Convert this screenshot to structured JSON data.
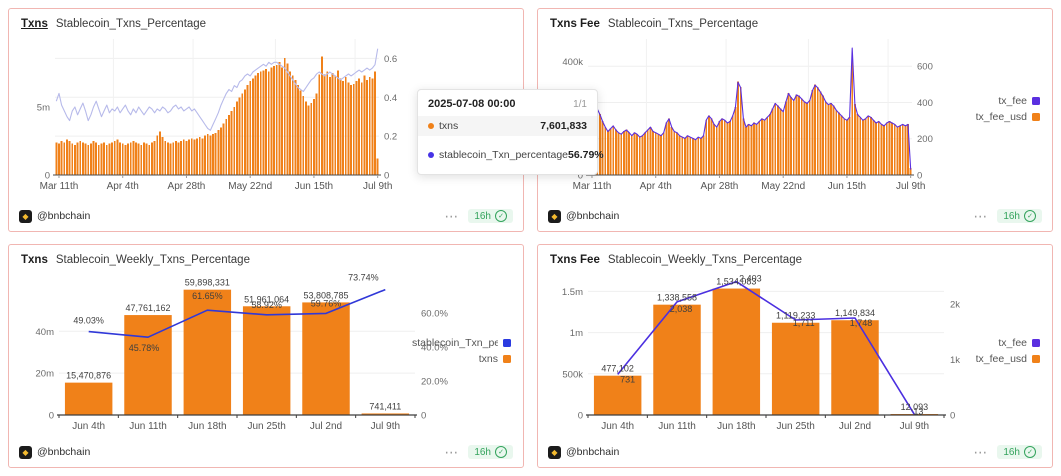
{
  "colors": {
    "bar_orange": "#f08119",
    "line_light_periwinkle": "#b7baea",
    "line_blue": "#3038d8",
    "line_purple": "#5a2fe0",
    "panel_border": "#f1b6b2",
    "badge_green": "#33a35c",
    "badge_bg": "#e9f7ee",
    "bnb_gold": "#f3ba2f"
  },
  "footer": {
    "logo": "bnb-diamond-icon",
    "logo_glyph": "◆",
    "handle": "@bnbchain",
    "more": "⋯",
    "badge_text": "16h",
    "badge_check": "✓"
  },
  "panels": [
    {
      "id": "txns-daily",
      "title_bold": "Txns",
      "title_rest": "Stablecoin_Txns_Percentage",
      "legend": []
    },
    {
      "id": "txns-fee-daily",
      "title_bold": "Txns Fee",
      "title_rest": "Stablecoin_Txns_Percentage",
      "legend": [
        {
          "label": "tx_fee",
          "color": "#5a2fe0"
        },
        {
          "label": "tx_fee_usd",
          "color": "#f08119"
        }
      ]
    },
    {
      "id": "txns-weekly",
      "title_bold": "Txns",
      "title_rest": "Stablecoin_Weekly_Txns_Percentage",
      "legend": [
        {
          "label": "stablecoin_Txn_pe",
          "color": "#2b3be0"
        },
        {
          "label": "txns",
          "color": "#f08119"
        }
      ]
    },
    {
      "id": "txns-fee-weekly",
      "title_bold": "Txns Fee",
      "title_rest": "Stablecoin_Weekly_Txns_Percentage",
      "legend": [
        {
          "label": "tx_fee",
          "color": "#5a2fe0"
        },
        {
          "label": "tx_fee_usd",
          "color": "#f08119"
        }
      ]
    }
  ],
  "tooltip": {
    "date": "2025-07-08 00:00",
    "page": "1/1",
    "rows": [
      {
        "dot_color": "#f08119",
        "name": "txns",
        "value": "7,601,833",
        "highlighted": true
      },
      {
        "dot_color": "#4733e6",
        "name": "stablecoin_Txn_percentage",
        "value": "56.79%",
        "highlighted": false
      }
    ]
  },
  "chart_data": [
    {
      "id": "txns-daily",
      "type": "bar",
      "title": "Txns Stablecoin_Txns_Percentage",
      "x_range": [
        "Mar 10th 2025",
        "Jul 9th 2025"
      ],
      "xticks": [
        {
          "index": 1,
          "label": "Mar 11th"
        },
        {
          "index": 25,
          "label": "Apr 4th"
        },
        {
          "index": 49,
          "label": "Apr 28th"
        },
        {
          "index": 73,
          "label": "May 22nd"
        },
        {
          "index": 97,
          "label": "Jun 15th"
        },
        {
          "index": 121,
          "label": "Jul 9th"
        }
      ],
      "left_axis": {
        "unit": "txns (millions)",
        "max": 10,
        "ticks": [
          {
            "value": 0,
            "label": "0"
          },
          {
            "value": 5,
            "label": "5m"
          }
        ]
      },
      "right_axis": {
        "unit": "ratio",
        "max": 0.7,
        "ticks": [
          {
            "value": 0,
            "label": "0"
          },
          {
            "value": 0.2,
            "label": "0.2"
          },
          {
            "value": 0.4,
            "label": "0.4"
          },
          {
            "value": 0.6,
            "label": "0.6"
          }
        ]
      },
      "series": [
        {
          "name": "txns",
          "type": "bar",
          "axis": "left",
          "color": "#f08119",
          "values": [
            2.4,
            2.3,
            2.5,
            2.4,
            2.6,
            2.5,
            2.3,
            2.2,
            2.4,
            2.5,
            2.4,
            2.3,
            2.2,
            2.3,
            2.5,
            2.4,
            2.2,
            2.3,
            2.4,
            2.2,
            2.3,
            2.4,
            2.5,
            2.6,
            2.4,
            2.3,
            2.2,
            2.3,
            2.4,
            2.5,
            2.4,
            2.3,
            2.2,
            2.4,
            2.3,
            2.2,
            2.4,
            2.5,
            2.9,
            3.2,
            2.8,
            2.5,
            2.4,
            2.3,
            2.4,
            2.5,
            2.4,
            2.5,
            2.6,
            2.5,
            2.6,
            2.7,
            2.6,
            2.7,
            2.8,
            2.7,
            2.9,
            3.0,
            2.9,
            3.0,
            3.1,
            3.3,
            3.5,
            3.8,
            4.1,
            4.4,
            4.7,
            5.0,
            5.4,
            5.7,
            6.0,
            6.3,
            6.6,
            6.9,
            7.1,
            7.3,
            7.5,
            7.6,
            7.7,
            7.8,
            7.6,
            7.9,
            8.0,
            8.1,
            8.3,
            7.9,
            8.6,
            8.2,
            7.6,
            7.3,
            7.0,
            6.6,
            6.2,
            5.8,
            5.4,
            5.1,
            5.3,
            5.6,
            6.0,
            7.4,
            8.7,
            7.4,
            7.6,
            7.2,
            7.5,
            7.3,
            7.7,
            7.1,
            6.9,
            7.2,
            6.8,
            6.6,
            6.7,
            6.9,
            7.1,
            6.8,
            7.3,
            7.0,
            7.2,
            7.1,
            7.6,
            1.2
          ]
        },
        {
          "name": "stablecoin_Txn_percentage",
          "type": "line",
          "axis": "right",
          "color": "#b7baea",
          "values": [
            0.38,
            0.42,
            0.36,
            0.33,
            0.3,
            0.28,
            0.33,
            0.35,
            0.31,
            0.34,
            0.37,
            0.33,
            0.28,
            0.31,
            0.35,
            0.38,
            0.34,
            0.3,
            0.33,
            0.36,
            0.32,
            0.34,
            0.33,
            0.35,
            0.32,
            0.34,
            0.36,
            0.33,
            0.31,
            0.34,
            0.32,
            0.35,
            0.33,
            0.31,
            0.33,
            0.35,
            0.34,
            0.32,
            0.34,
            0.33,
            0.35,
            0.34,
            0.32,
            0.33,
            0.35,
            0.36,
            0.34,
            0.35,
            0.33,
            0.34,
            0.35,
            0.33,
            0.34,
            0.32,
            0.3,
            0.28,
            0.26,
            0.24,
            0.23,
            0.26,
            0.29,
            0.32,
            0.36,
            0.39,
            0.42,
            0.44,
            0.43,
            0.46,
            0.45,
            0.48,
            0.49,
            0.51,
            0.52,
            0.51,
            0.53,
            0.54,
            0.55,
            0.56,
            0.57,
            0.56,
            0.58,
            0.57,
            0.58,
            0.58,
            0.57,
            0.56,
            0.55,
            0.53,
            0.51,
            0.49,
            0.47,
            0.45,
            0.44,
            0.43,
            0.45,
            0.47,
            0.49,
            0.5,
            0.52,
            0.53,
            0.52,
            0.51,
            0.52,
            0.53,
            0.52,
            0.51,
            0.5,
            0.49,
            0.5,
            0.51,
            0.52,
            0.51,
            0.52,
            0.53,
            0.54,
            0.53,
            0.54,
            0.55,
            0.54,
            0.55,
            0.5679,
            0.65
          ]
        }
      ],
      "hover": {
        "date": "2025-07-08 00:00",
        "txns": 7601833,
        "stablecoin_Txn_percentage": "56.79%"
      }
    },
    {
      "id": "txns-fee-daily",
      "type": "bar",
      "title": "Txns Fee Stablecoin_Txns_Percentage",
      "x_range": [
        "Mar 10th 2025",
        "Jul 9th 2025"
      ],
      "xticks": [
        {
          "index": 1,
          "label": "Mar 11th"
        },
        {
          "index": 25,
          "label": "Apr 4th"
        },
        {
          "index": 49,
          "label": "Apr 28th"
        },
        {
          "index": 73,
          "label": "May 22nd"
        },
        {
          "index": 97,
          "label": "Jun 15th"
        },
        {
          "index": 121,
          "label": "Jul 9th"
        }
      ],
      "left_axis": {
        "unit": "tx_fee_usd (thousands)",
        "max": 480,
        "ticks": [
          {
            "value": 0,
            "label": "0"
          },
          {
            "value": 400,
            "label": "400k"
          }
        ]
      },
      "right_axis": {
        "unit": "tx_fee",
        "max": 750,
        "ticks": [
          {
            "value": 0,
            "label": "0"
          },
          {
            "value": 200,
            "label": "200"
          },
          {
            "value": 400,
            "label": "400"
          },
          {
            "value": 600,
            "label": "600"
          }
        ]
      },
      "series": [
        {
          "name": "tx_fee_usd",
          "type": "bar",
          "axis": "left",
          "color": "#f08119",
          "values": [
            15,
            230,
            225,
            235,
            215,
            190,
            170,
            155,
            165,
            175,
            160,
            150,
            145,
            155,
            160,
            150,
            140,
            150,
            145,
            135,
            140,
            150,
            160,
            170,
            155,
            150,
            145,
            140,
            150,
            185,
            200,
            170,
            155,
            150,
            140,
            135,
            130,
            140,
            135,
            130,
            125,
            135,
            130,
            140,
            195,
            210,
            200,
            180,
            170,
            190,
            200,
            195,
            185,
            190,
            210,
            240,
            330,
            310,
            200,
            170,
            180,
            175,
            185,
            180,
            190,
            200,
            195,
            205,
            215,
            235,
            255,
            245,
            235,
            225,
            260,
            290,
            275,
            265,
            285,
            280,
            270,
            260,
            255,
            265,
            300,
            320,
            310,
            295,
            280,
            260,
            250,
            255,
            245,
            230,
            220,
            210,
            200,
            195,
            205,
            430,
            250,
            215,
            205,
            195,
            200,
            210,
            205,
            195,
            185,
            190,
            180,
            175,
            185,
            190,
            185,
            180,
            170,
            175,
            180,
            175,
            180,
            25
          ]
        },
        {
          "name": "tx_fee",
          "type": "line",
          "axis": "right",
          "color": "#5a2fe0",
          "values": [
            23,
            357,
            349,
            364,
            333,
            295,
            264,
            240,
            256,
            271,
            248,
            233,
            225,
            240,
            248,
            233,
            217,
            233,
            225,
            209,
            217,
            233,
            248,
            264,
            240,
            233,
            225,
            217,
            233,
            287,
            310,
            264,
            240,
            233,
            217,
            209,
            202,
            217,
            209,
            202,
            194,
            209,
            202,
            217,
            302,
            326,
            310,
            279,
            264,
            295,
            310,
            302,
            287,
            295,
            326,
            372,
            512,
            481,
            310,
            264,
            279,
            271,
            287,
            279,
            295,
            310,
            302,
            318,
            333,
            364,
            395,
            380,
            364,
            349,
            403,
            450,
            426,
            411,
            442,
            434,
            419,
            403,
            395,
            411,
            465,
            496,
            481,
            457,
            434,
            403,
            388,
            395,
            380,
            357,
            341,
            326,
            310,
            302,
            318,
            700,
            388,
            333,
            318,
            302,
            310,
            326,
            318,
            302,
            287,
            295,
            279,
            271,
            287,
            295,
            287,
            279,
            264,
            271,
            279,
            271,
            279,
            30
          ]
        }
      ]
    },
    {
      "id": "txns-weekly",
      "type": "bar",
      "title": "Txns Stablecoin_Weekly_Txns_Percentage",
      "categories": [
        "Jun 4th",
        "Jun 11th",
        "Jun 18th",
        "Jun 25th",
        "Jul 2nd",
        "Jul 9th"
      ],
      "left_axis": {
        "unit": "txns",
        "max": 65000000,
        "ticks": [
          {
            "value": 0,
            "label": "0"
          },
          {
            "value": 20000000,
            "label": "20m"
          },
          {
            "value": 40000000,
            "label": "40m"
          }
        ]
      },
      "right_axis": {
        "unit": "percent",
        "max": 80,
        "ticks": [
          {
            "value": 0,
            "label": "0"
          },
          {
            "value": 20,
            "label": "20.0%"
          },
          {
            "value": 40,
            "label": "40.0%"
          },
          {
            "value": 60,
            "label": "60.0%"
          }
        ]
      },
      "series": [
        {
          "name": "txns",
          "type": "bar",
          "axis": "left",
          "color": "#f08119",
          "values": [
            15470876,
            47761162,
            59898331,
            51961064,
            53808785,
            741411
          ],
          "labels": [
            "15,470,876",
            "47,761,162",
            "59,898,331",
            "51,961,064",
            "53,808,785",
            "741,411"
          ]
        },
        {
          "name": "stablecoin_Txn_percentage",
          "type": "line",
          "axis": "right",
          "color": "#3038d8",
          "values": [
            49.03,
            45.78,
            61.65,
            58.92,
            59.76,
            73.74
          ],
          "labels": [
            "49.03%",
            "45.78%",
            "61.65%",
            "58.92%",
            "59.76%",
            "73.74%"
          ],
          "label_offsets": [
            [
              0,
              -8
            ],
            [
              -4,
              14
            ],
            [
              0,
              -11
            ],
            [
              0,
              -7
            ],
            [
              0,
              -7
            ],
            [
              -22,
              -9
            ]
          ]
        }
      ]
    },
    {
      "id": "txns-fee-weekly",
      "type": "bar",
      "title": "Txns Fee Stablecoin_Weekly_Txns_Percentage",
      "categories": [
        "Jun 4th",
        "Jun 11th",
        "Jun 18th",
        "Jun 25th",
        "Jul 2nd",
        "Jul 9th"
      ],
      "left_axis": {
        "unit": "tx_fee_usd",
        "max": 1650000,
        "ticks": [
          {
            "value": 0,
            "label": "0"
          },
          {
            "value": 500000,
            "label": "500k"
          },
          {
            "value": 1000000,
            "label": "1m"
          },
          {
            "value": 1500000,
            "label": "1.5m"
          }
        ]
      },
      "right_axis": {
        "unit": "tx_fee",
        "max": 2450,
        "ticks": [
          {
            "value": 0,
            "label": "0"
          },
          {
            "value": 1000,
            "label": "1k"
          },
          {
            "value": 2000,
            "label": "2k"
          }
        ]
      },
      "series": [
        {
          "name": "tx_fee_usd",
          "type": "bar",
          "axis": "left",
          "color": "#f08119",
          "values": [
            477102,
            1338558,
            1534083,
            1119233,
            1149834,
            12093
          ],
          "labels": [
            "477,102",
            "1,338,558",
            "1,534,083",
            "1,119,233",
            "1,149,834",
            "12,093"
          ]
        },
        {
          "name": "tx_fee",
          "type": "line",
          "axis": "right",
          "color": "#4b2fe0",
          "values": [
            731,
            2038,
            2403,
            1711,
            1748,
            13
          ],
          "labels": [
            "731",
            "2,038",
            "2,403",
            "1,711",
            "1,748",
            "13"
          ],
          "label_offsets": [
            [
              10,
              8
            ],
            [
              4,
              10
            ],
            [
              14,
              0
            ],
            [
              8,
              6
            ],
            [
              6,
              8
            ],
            [
              4,
              0
            ]
          ]
        }
      ]
    }
  ]
}
